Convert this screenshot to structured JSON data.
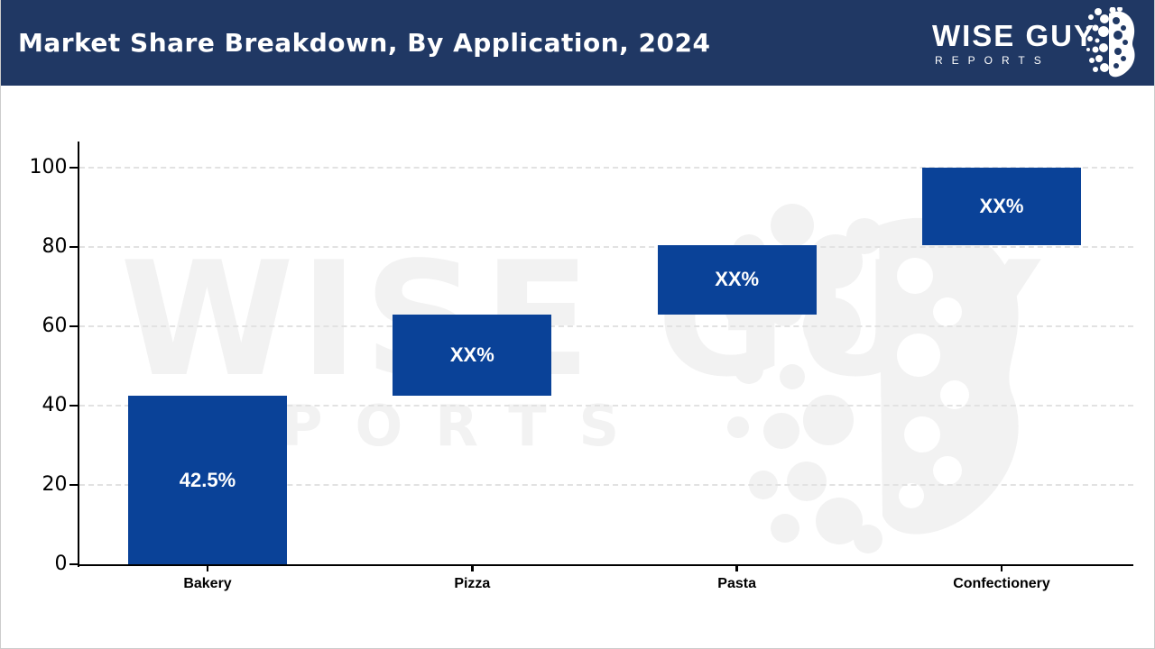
{
  "header": {
    "title": "Market Share Breakdown, By Application, 2024",
    "logo": {
      "primary": "WISE GUY",
      "secondary": "REPORTS"
    }
  },
  "watermark": {
    "primary": "WISE GUY",
    "secondary": "REPORTS"
  },
  "chart_data": {
    "type": "bar",
    "variant": "waterfall",
    "title": "Market Share Breakdown, By Application, 2024",
    "categories": [
      "Bakery",
      "Pizza",
      "Pasta",
      "Confectionery"
    ],
    "segments": [
      {
        "category": "Bakery",
        "start": 0,
        "end": 42.5,
        "label": "42.5%"
      },
      {
        "category": "Pizza",
        "start": 42.5,
        "end": 63,
        "label": "XX%"
      },
      {
        "category": "Pasta",
        "start": 63,
        "end": 80.5,
        "label": "XX%"
      },
      {
        "category": "Confectionery",
        "start": 80.5,
        "end": 100,
        "label": "XX%"
      }
    ],
    "yticks": [
      0,
      20,
      40,
      60,
      80,
      100
    ],
    "ylim": [
      0,
      107
    ],
    "xlabel": "",
    "ylabel": "",
    "grid": "horizontal-dashed",
    "legend": "none",
    "colors": {
      "bar": "#0a4298",
      "bar_label": "#ffffff",
      "axis": "#000000",
      "gridline": "#e2e2e2",
      "tick_label": "#000000",
      "header_bg": "#203864",
      "header_text": "#ffffff",
      "watermark": "#f2f2f2"
    }
  }
}
